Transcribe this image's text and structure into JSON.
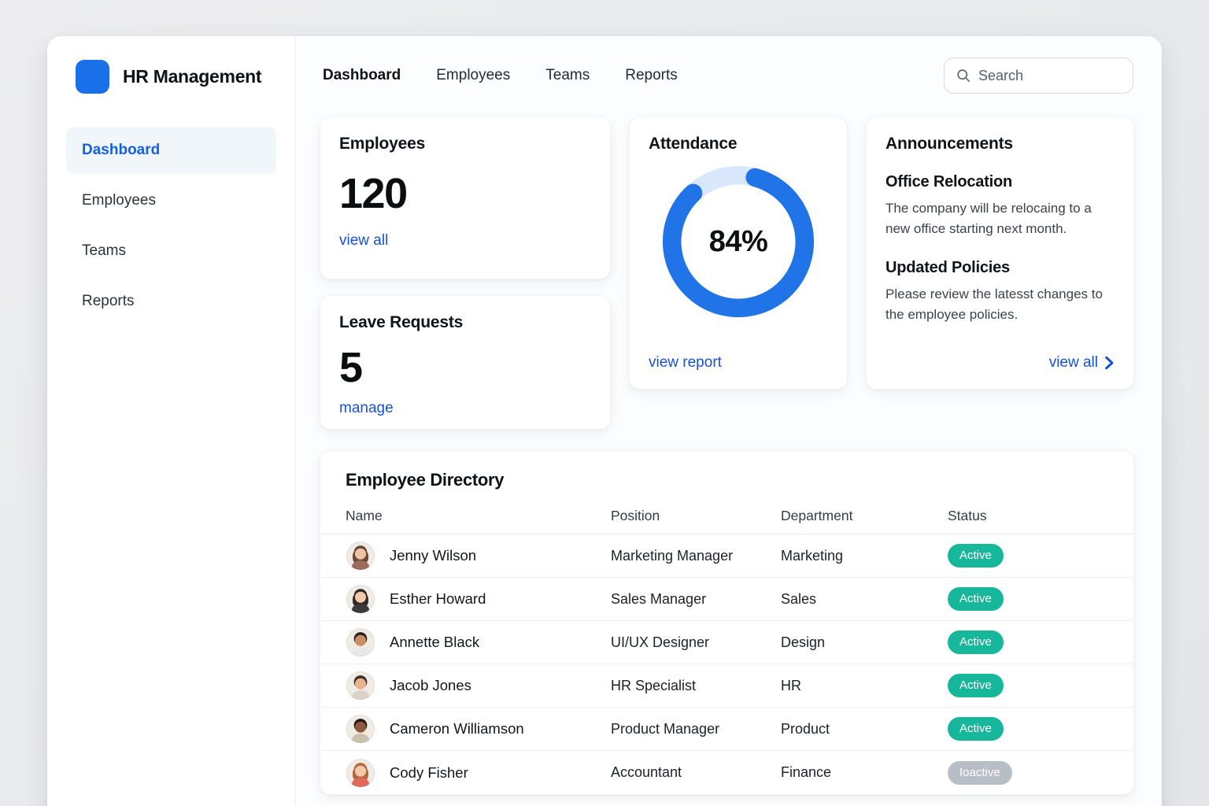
{
  "app": {
    "brand": "HR Management",
    "accent": "#1a70e8",
    "accent_text": "#1560dd",
    "link_color": "#1651d6"
  },
  "sidebar": {
    "items": [
      {
        "label": "Dashboard",
        "active": true
      },
      {
        "label": "Employees",
        "active": false
      },
      {
        "label": "Teams",
        "active": false
      },
      {
        "label": "Reports",
        "active": false
      }
    ]
  },
  "topnav": {
    "tabs": [
      {
        "label": "Dashboard",
        "active": true
      },
      {
        "label": "Employees",
        "active": false
      },
      {
        "label": "Teams",
        "active": false
      },
      {
        "label": "Reports",
        "active": false
      }
    ],
    "search_placeholder": "Search"
  },
  "cards": {
    "employees": {
      "title": "Employees",
      "count": "120",
      "link": "view all"
    },
    "leave": {
      "title": "Leave Requests",
      "count": "5",
      "link": "manage"
    },
    "attendance": {
      "title": "Attendance",
      "value_pct": 84,
      "value_label": "84%",
      "link": "view report",
      "ring_color": "#2173e8",
      "ring_track_color": "#d8e7fb"
    },
    "announcements": {
      "title": "Announcements",
      "items": [
        {
          "heading": "Office Relocation",
          "body": "The company will be relocaing to a new office starting next month."
        },
        {
          "heading": "Updated Policies",
          "body": "Please review the latesst changes to the employee policies."
        }
      ],
      "link": "view all"
    }
  },
  "directory": {
    "title": "Employee Directory",
    "columns": [
      "Name",
      "Position",
      "Department",
      "Status"
    ],
    "status_colors": {
      "Active": "#17b79c",
      "Ioactive": "#b7bec6"
    },
    "rows": [
      {
        "name": "Jenny Wilson",
        "position": "Marketing Manager",
        "department": "Marketing",
        "status": "Active",
        "avatar": {
          "hair": "#6b4a3a",
          "skin": "#f0c3a6",
          "shirt": "#9c6b5a",
          "style": "long"
        }
      },
      {
        "name": "Esther Howard",
        "position": "Sales Manager",
        "department": "Sales",
        "status": "Active",
        "avatar": {
          "hair": "#2f2a28",
          "skin": "#f2c9ab",
          "shirt": "#3a3a3c",
          "style": "long"
        }
      },
      {
        "name": "Annette Black",
        "position": "UI/UX Designer",
        "department": "Design",
        "status": "Active",
        "avatar": {
          "hair": "#2b2320",
          "skin": "#c98e63",
          "shirt": "#e8e8ea",
          "style": "short"
        }
      },
      {
        "name": "Jacob Jones",
        "position": "HR Specialist",
        "department": "HR",
        "status": "Active",
        "avatar": {
          "hair": "#3a2e26",
          "skin": "#e8b48e",
          "shirt": "#d8d2c8",
          "style": "short"
        }
      },
      {
        "name": "Cameron Williamson",
        "position": "Product Manager",
        "department": "Product",
        "status": "Active",
        "avatar": {
          "hair": "#1e1a18",
          "skin": "#8d5a3f",
          "shirt": "#cbbfae",
          "style": "short"
        }
      },
      {
        "name": "Cody Fisher",
        "position": "Accountant",
        "department": "Finance",
        "status": "Ioactive",
        "avatar": {
          "hair": "#b5673f",
          "skin": "#f3c9a9",
          "shirt": "#e06a5a",
          "style": "long"
        }
      }
    ]
  }
}
